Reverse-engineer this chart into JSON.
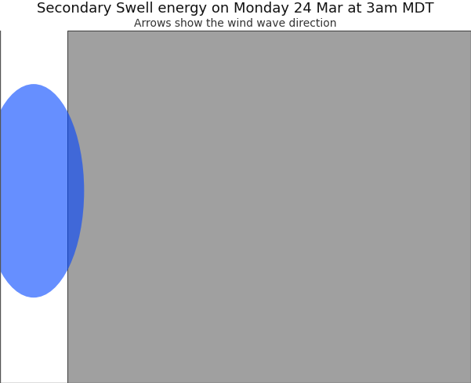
{
  "title": "Secondary Swell energy on Monday 24 Mar at 3am MDT",
  "subtitle": "Arrows show the wind wave direction",
  "title_fontsize": 13,
  "subtitle_fontsize": 10,
  "fig_width": 6.01,
  "fig_height": 4.89,
  "bg_color": "#000000",
  "land_color_light": "#b0b0b0",
  "land_color_mid": "#909090",
  "land_color_dark": "#787878",
  "water_color": "#000000",
  "border_color": "#000000",
  "state_line_color": "#000000",
  "swell_color_low": "#0000ff",
  "swell_color_high": "#00ffff",
  "arrow_color": "#00ffff",
  "title_bg": "#ffffff",
  "map_extent": [
    -135,
    -65,
    22,
    55
  ]
}
